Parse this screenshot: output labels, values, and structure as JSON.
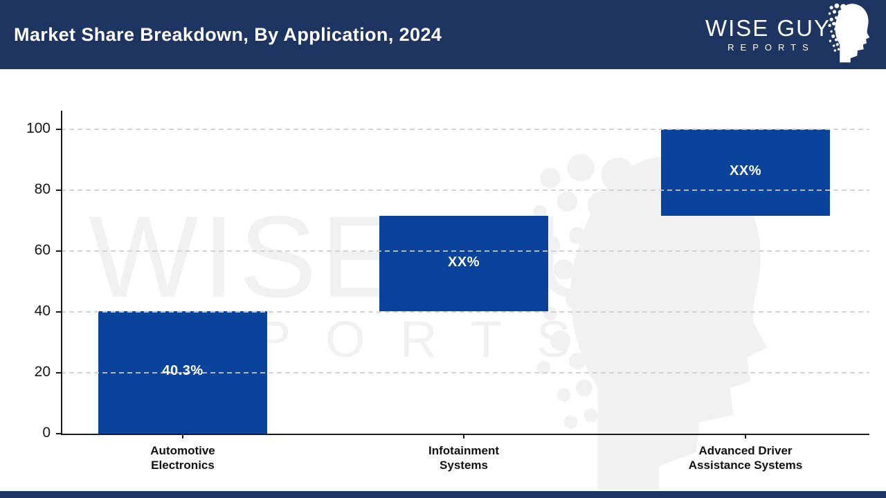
{
  "header": {
    "title": "Market Share Breakdown, By Application, 2024",
    "logo": {
      "line1": "WISE GUY",
      "line2": "REPORTS"
    }
  },
  "watermark": {
    "line1": "WISE GUY",
    "line2": "REPORTS"
  },
  "colors": {
    "header_bg": "#1f3561",
    "bar": "#09439b",
    "value_label": "#ffffff",
    "grid": "#cdcdcd",
    "axis": "#1a1a1a",
    "watermark": "#f1f1f1"
  },
  "chart_data": {
    "type": "bar",
    "subtype": "waterfall-floating-bars",
    "title": "Market Share Breakdown, By Application, 2024",
    "xlabel": "",
    "ylabel": "",
    "ylim": [
      0,
      100
    ],
    "yticks": [
      0,
      20,
      40,
      60,
      80,
      100
    ],
    "grid": "horizontal dashed",
    "legend": "none",
    "categories": [
      "Automotive Electronics",
      "Infotainment Systems",
      "Advanced Driver Assistance Systems"
    ],
    "category_lines": [
      [
        "Automotive",
        "Electronics"
      ],
      [
        "Infotainment",
        "Systems"
      ],
      [
        "Advanced Driver",
        "Assistance Systems"
      ]
    ],
    "segments": [
      {
        "category": "Automotive Electronics",
        "start": 0,
        "end": 40.3,
        "label": "40.3%"
      },
      {
        "category": "Infotainment Systems",
        "start": 40.3,
        "end": 71.6,
        "label": "XX%"
      },
      {
        "category": "Advanced Driver Assistance Systems",
        "start": 71.6,
        "end": 100,
        "label": "XX%"
      }
    ]
  }
}
